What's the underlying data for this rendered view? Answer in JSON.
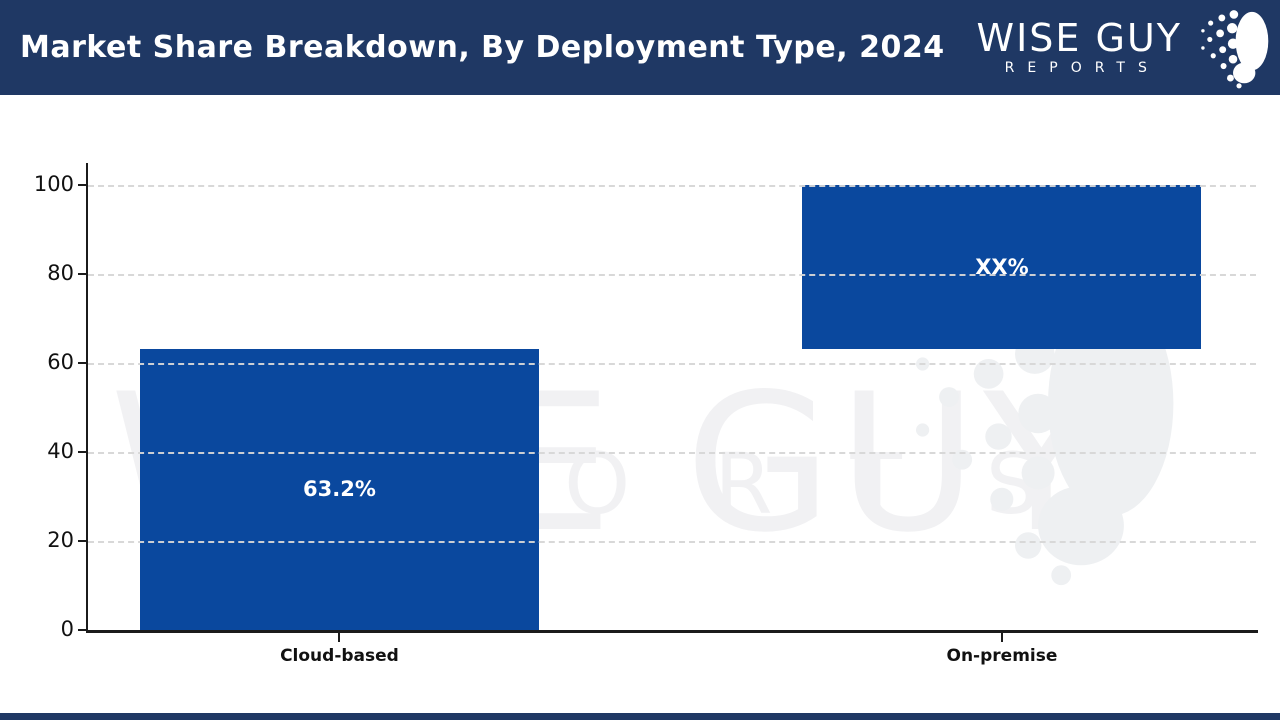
{
  "header": {
    "title": "Market Share Breakdown, By Deployment Type, 2024",
    "logo": {
      "line1": "WISE GUY",
      "line2": "REPORTS",
      "icon": "dotted-head-profile-icon"
    }
  },
  "watermark": {
    "line1": "WISE GUY",
    "line2": "REPORTS"
  },
  "chart_data": {
    "type": "bar",
    "title": "Market Share Breakdown, By Deployment Type, 2024",
    "categories": [
      "Cloud-based",
      "On-premise"
    ],
    "series": [
      {
        "name": "Market share (%)",
        "segments": [
          {
            "category": "Cloud-based",
            "start": 0,
            "end": 63.2,
            "label": "63.2%"
          },
          {
            "category": "On-premise",
            "start": 63.2,
            "end": 100,
            "label": "XX%"
          }
        ]
      }
    ],
    "ylim": [
      0,
      100
    ],
    "yticks": [
      0,
      20,
      40,
      60,
      80,
      100
    ],
    "xlabel": "",
    "ylabel": "",
    "grid": "horizontal-dashed-over-bars",
    "legend": "none",
    "bar_color": "#0a489e",
    "bar_label_color": "#ffffff"
  },
  "colors": {
    "header_bg": "#1f3864",
    "footer_bg": "#1f3864",
    "axis": "#1b1b1b",
    "gridline": "#d6d6d6",
    "watermark": "#f1f1f3",
    "background": "#ffffff"
  }
}
